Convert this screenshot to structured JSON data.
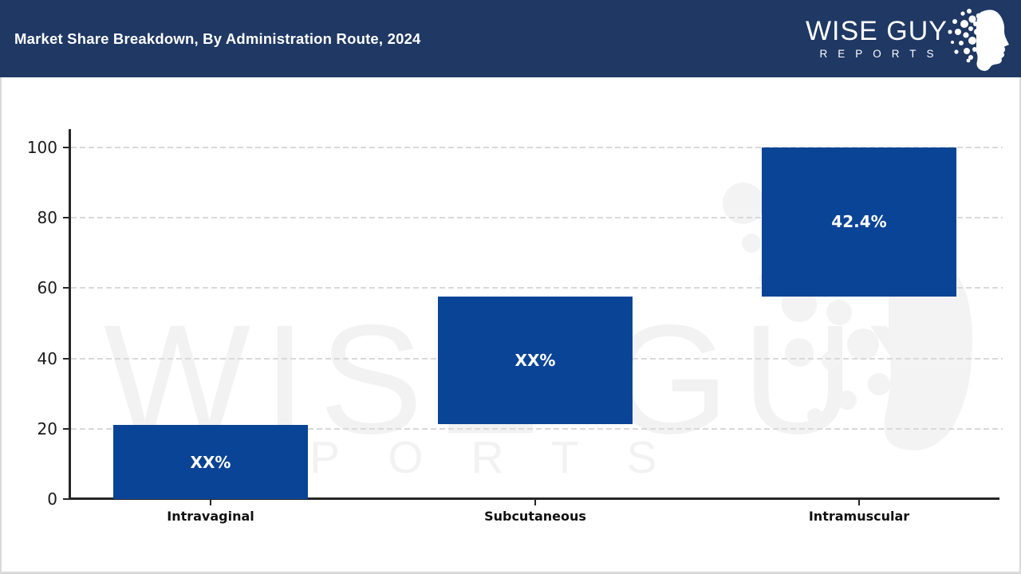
{
  "header": {
    "title": "Market Share Breakdown, By Administration Route, 2024",
    "bg_color": "#1f3864",
    "logo": {
      "line1": "WISE GUY",
      "line2": "REPORTS"
    }
  },
  "watermark": {
    "line1": "WISE GUY",
    "line2": "REPORTS"
  },
  "chart_data": {
    "type": "bar",
    "variant": "waterfall",
    "title": "Market Share Breakdown, By Administration Route, 2024",
    "categories": [
      "Intravaginal",
      "Subcutaneous",
      "Intramuscular"
    ],
    "segments": [
      {
        "category": "Intravaginal",
        "start": 0,
        "value": 21.0,
        "label": "XX%"
      },
      {
        "category": "Subcutaneous",
        "start": 21.2,
        "value": 36.4,
        "label": "XX%"
      },
      {
        "category": "Intramuscular",
        "start": 57.6,
        "value": 42.4,
        "label": "42.4%"
      }
    ],
    "xlabel": "",
    "ylabel": "",
    "ylim": [
      0,
      100
    ],
    "yticks": [
      0,
      20,
      40,
      60,
      80,
      100
    ],
    "grid": "horizontal-dashed",
    "legend": "none",
    "bar_color": "#0a4496",
    "bar_label_color": "#ffffff"
  }
}
